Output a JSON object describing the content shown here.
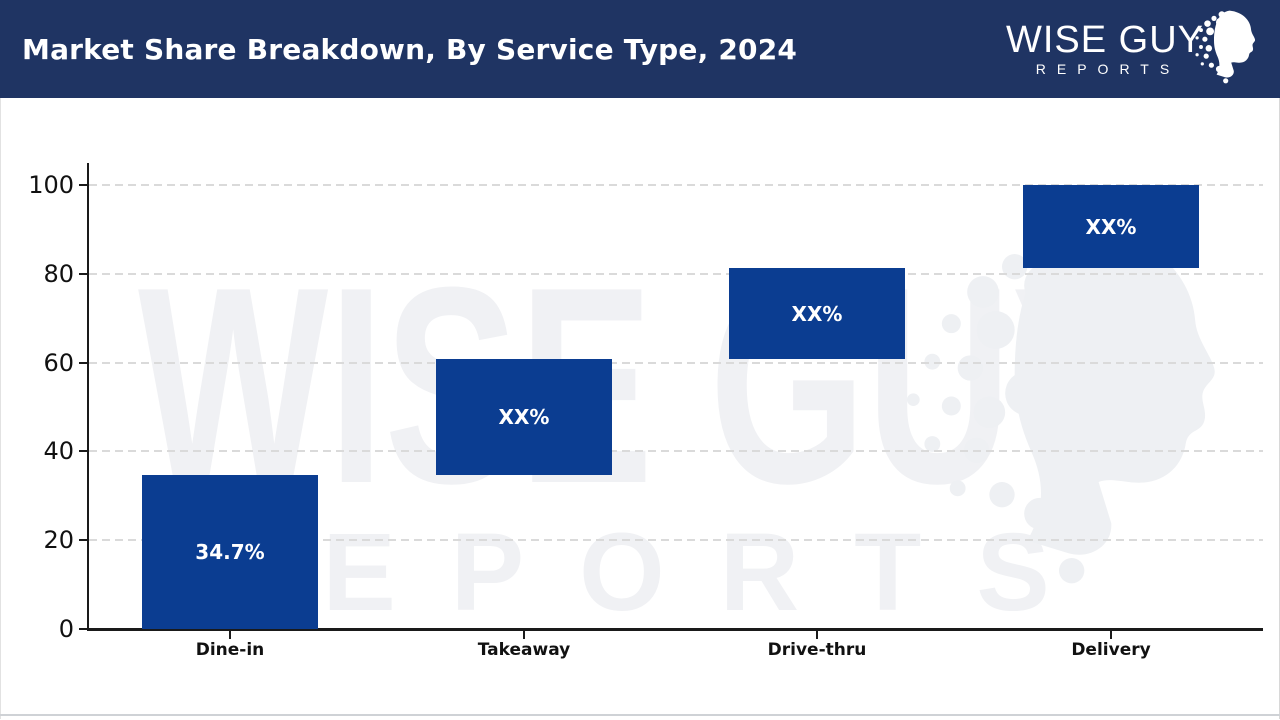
{
  "header": {
    "title": "Market Share Breakdown, By Service Type, 2024",
    "bg_color": "#1f3463",
    "text_color": "#ffffff",
    "logo": {
      "line1": "WISE GUY",
      "line2": "REPORTS"
    }
  },
  "watermark": {
    "line1": "WISE GUY",
    "line2": "REPORTS",
    "color": "#f0f1f4"
  },
  "chart_data": {
    "type": "bar",
    "variant": "waterfall",
    "title": "Market Share Breakdown, By Service Type, 2024",
    "categories": [
      "Dine-in",
      "Takeaway",
      "Drive-thru",
      "Delivery"
    ],
    "segments": [
      {
        "category": "Dine-in",
        "start": 0,
        "end": 34.7,
        "label": "34.7%"
      },
      {
        "category": "Takeaway",
        "start": 34.7,
        "end": 60.8,
        "label": "XX%"
      },
      {
        "category": "Drive-thru",
        "start": 60.8,
        "end": 81.3,
        "label": "XX%"
      },
      {
        "category": "Delivery",
        "start": 81.3,
        "end": 100,
        "label": "XX%"
      }
    ],
    "xlabel": "",
    "ylabel": "",
    "ylim": [
      0,
      104
    ],
    "yticks": [
      0,
      20,
      40,
      60,
      80,
      100
    ],
    "grid": "horizontal-dashed",
    "legend": "none",
    "bar_color": "#0b3d91",
    "bar_label_color": "#ffffff",
    "axis_color": "#1a1a1a",
    "gridline_color": "#dadada"
  }
}
